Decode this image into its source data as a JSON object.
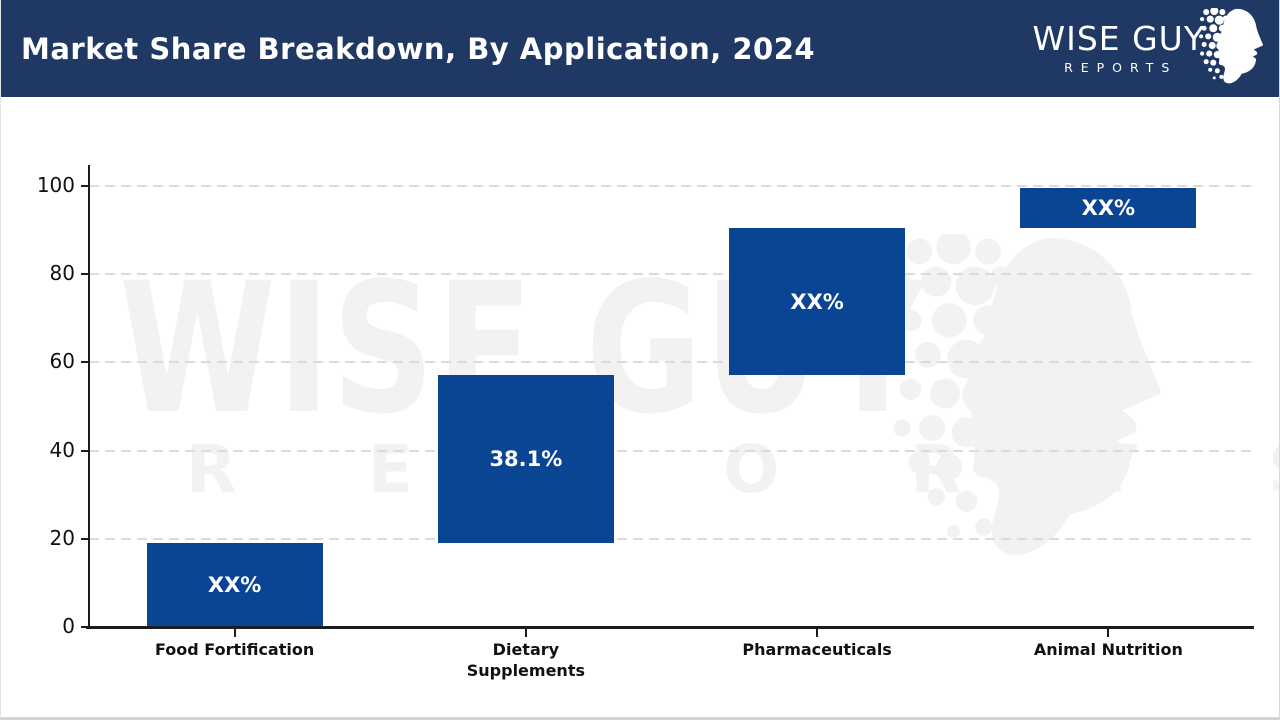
{
  "header": {
    "title": "Market Share Breakdown, By Application, 2024",
    "bg_color": "#1f3864",
    "logo": {
      "line1": "WISE GUY",
      "line2": "REPORTS"
    }
  },
  "watermark": {
    "line1": "WISE GUY",
    "line2": "R E P O R T S",
    "color": "#f2f2f3"
  },
  "chart_data": {
    "type": "bar",
    "subtype": "waterfall",
    "title": "Market Share Breakdown, By Application, 2024",
    "xlabel": "",
    "ylabel": "",
    "categories": [
      "Food Fortification",
      "Dietary Supplements",
      "Pharmaceuticals",
      "Animal Nutrition"
    ],
    "tick_labels": [
      "Food Fortification",
      "Dietary\nSupplements",
      "Pharmaceuticals",
      "Animal Nutrition"
    ],
    "segments": [
      {
        "start": 0,
        "end": 19,
        "label": "XX%"
      },
      {
        "start": 19,
        "end": 57.1,
        "label": "38.1%"
      },
      {
        "start": 57.1,
        "end": 90.5,
        "label": "XX%"
      },
      {
        "start": 90.5,
        "end": 99.5,
        "label": "XX%"
      }
    ],
    "yticks": [
      0,
      20,
      40,
      60,
      80,
      100
    ],
    "ylim": [
      0,
      105
    ],
    "grid": "dashed-horizontal",
    "legend": "none",
    "style": {
      "bar_color": "#0a4594",
      "axis_color": "#1c1c1c",
      "grid_color": "#dbdbdb",
      "label_color": "#ffffff"
    }
  }
}
